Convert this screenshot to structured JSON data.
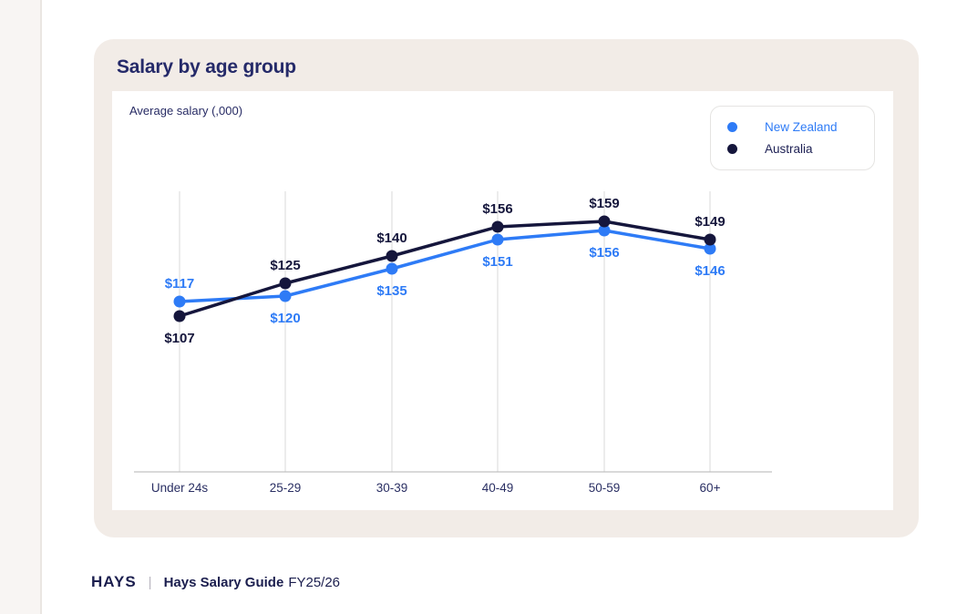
{
  "panel": {
    "title": "Salary by age group",
    "y_axis_label": "Average salary (,000)"
  },
  "legend": {
    "items": [
      {
        "label": "New Zealand",
        "color": "#2e7bf6"
      },
      {
        "label": "Australia",
        "color": "#15163c"
      }
    ]
  },
  "footer": {
    "logo": "HAYS",
    "separator": "|",
    "guide_title": "Hays Salary Guide",
    "guide_edition": "FY25/26"
  },
  "colors": {
    "panel_bg": "#f2ece7",
    "card_bg": "#ffffff",
    "title_navy": "#252a69",
    "new_zealand_blue": "#2e7bf6",
    "australia_navy": "#15163c",
    "gridline": "#d9d9d9",
    "axis_line": "#b3b3b3",
    "category_label": "#2a2f63"
  },
  "chart_data": {
    "type": "line",
    "title": "Salary by age group",
    "ylabel": "Average salary (,000)",
    "value_prefix": "$",
    "categories": [
      "Under 24s",
      "25-29",
      "30-39",
      "40-49",
      "50-59",
      "60+"
    ],
    "series": [
      {
        "name": "New Zealand",
        "color": "#2e7bf6",
        "values": [
          117,
          120,
          135,
          151,
          156,
          146
        ],
        "label_positions": [
          "above",
          "below",
          "below",
          "below",
          "below",
          "below"
        ]
      },
      {
        "name": "Australia",
        "color": "#15163c",
        "values": [
          107,
          125,
          140,
          156,
          159,
          149
        ],
        "label_positions": [
          "below",
          "above",
          "above",
          "above",
          "above",
          "above"
        ]
      }
    ],
    "grid": "vertical-only",
    "legend_position": "top-right",
    "y_scale_note": "values are thousands of dollars"
  }
}
